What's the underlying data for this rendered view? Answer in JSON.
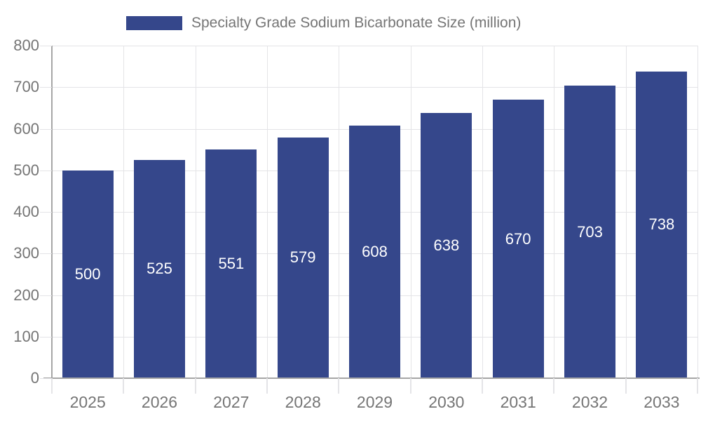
{
  "chart_data": {
    "type": "bar",
    "title": "Specialty Grade Sodium Bicarbonate Size (million)",
    "categories": [
      "2025",
      "2026",
      "2027",
      "2028",
      "2029",
      "2030",
      "2031",
      "2032",
      "2033"
    ],
    "values": [
      500,
      525,
      551,
      579,
      608,
      638,
      670,
      703,
      738
    ],
    "series_name": "Specialty Grade Sodium Bicarbonate Size (million)",
    "xlabel": "",
    "ylabel": "",
    "ylim": [
      0,
      800
    ],
    "yticks": [
      0,
      100,
      200,
      300,
      400,
      500,
      600,
      700,
      800
    ],
    "grid": true,
    "legend_position": "top",
    "bar_labels": "inside-center"
  },
  "colors": {
    "bar": "#35478b",
    "grid": "#e4e4e7",
    "axis": "#a6a6a6",
    "tick_text": "#757575",
    "legend_text": "#757575",
    "bar_label_text": "#ffffff",
    "background": "#ffffff"
  }
}
